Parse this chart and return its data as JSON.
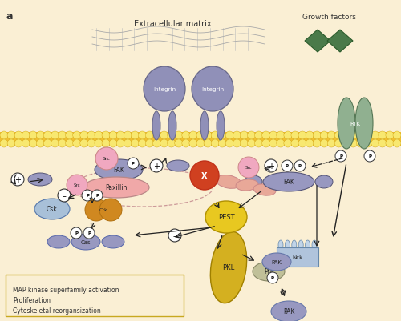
{
  "bg_color": "#faefd4",
  "membrane_color": "#f0c030",
  "integrin_color": "#9090b8",
  "fak_color": "#9898c0",
  "src_color": "#f0a8c0",
  "paxillin_color": "#f0a8a8",
  "pest_color": "#e8c820",
  "pkl_color": "#d4b020",
  "csk_color": "#a8c0d8",
  "crk_color": "#d08820",
  "cas_color": "#9898c0",
  "pak_color": "#9898c0",
  "pix_color": "#c0c098",
  "nck_color": "#9898c0",
  "rtk_color": "#90b090",
  "x_color": "#d04020",
  "diamond_color": "#4a7a4a",
  "p_color": "#ffffff",
  "ecm_label": "Extracellular matrix",
  "gf_label": "Growth factors",
  "legend_lines": [
    "MAP kinase superfamily activation",
    "Proliferation",
    "Cytoskeletal reorgansization"
  ]
}
